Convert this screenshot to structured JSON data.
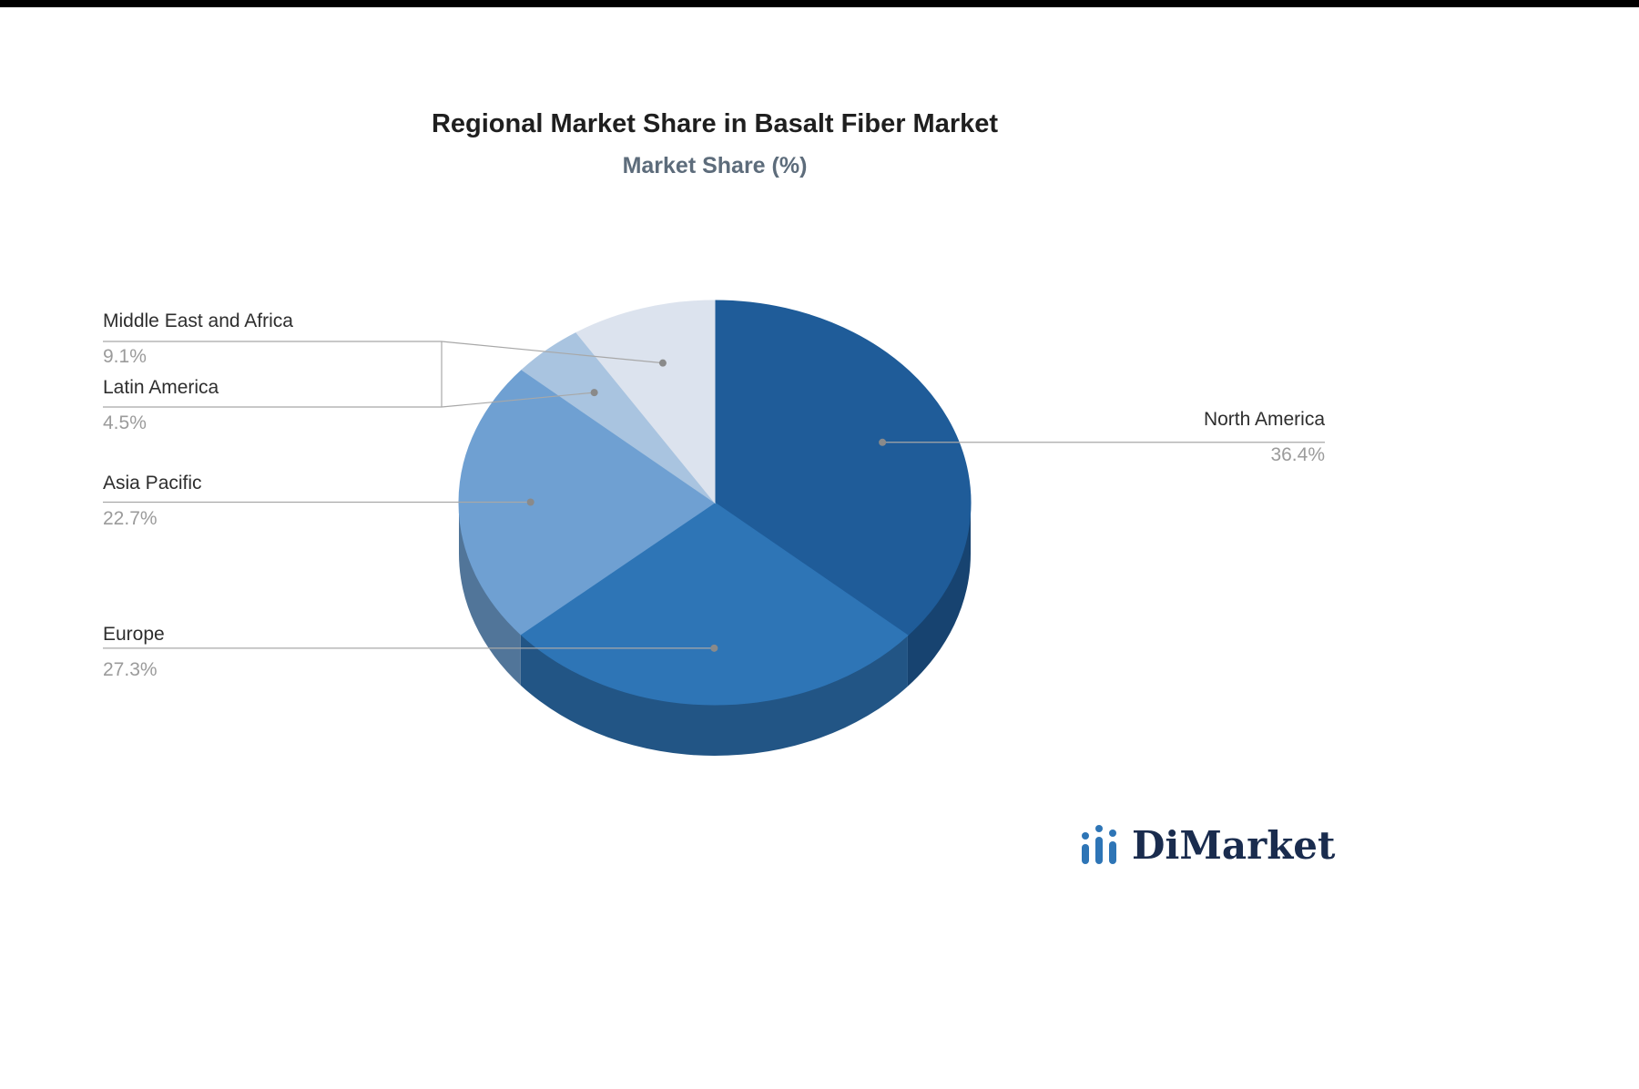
{
  "page": {
    "background": "#ffffff",
    "top_bar_color": "#000000"
  },
  "chart_data": {
    "type": "pie",
    "title": "Regional Market Share in Basalt Fiber Market",
    "subtitle": "Market Share (%)",
    "unit": "%",
    "direction": "clockwise",
    "start_angle_deg": 0,
    "effect_3d": true,
    "slices": [
      {
        "label": "North America",
        "value": 36.4,
        "pct_label": "36.4%",
        "color": "#1f5c99"
      },
      {
        "label": "Europe",
        "value": 27.3,
        "pct_label": "27.3%",
        "color": "#2e75b6"
      },
      {
        "label": "Asia Pacific",
        "value": 22.7,
        "pct_label": "22.7%",
        "color": "#6fa0d2"
      },
      {
        "label": "Latin America",
        "value": 4.5,
        "pct_label": "4.5%",
        "color": "#a9c4e0"
      },
      {
        "label": "Middle East and Africa",
        "value": 9.1,
        "pct_label": "9.1%",
        "color": "#dce3ee"
      }
    ],
    "leader_line_color": "#a8a8a8",
    "leader_dot_color": "#8a8a8a"
  },
  "brand": {
    "name": "DiMarket",
    "icon": "bar-chart-logo-icon",
    "text_color": "#1a2c4e",
    "icon_color": "#2e75b6"
  }
}
